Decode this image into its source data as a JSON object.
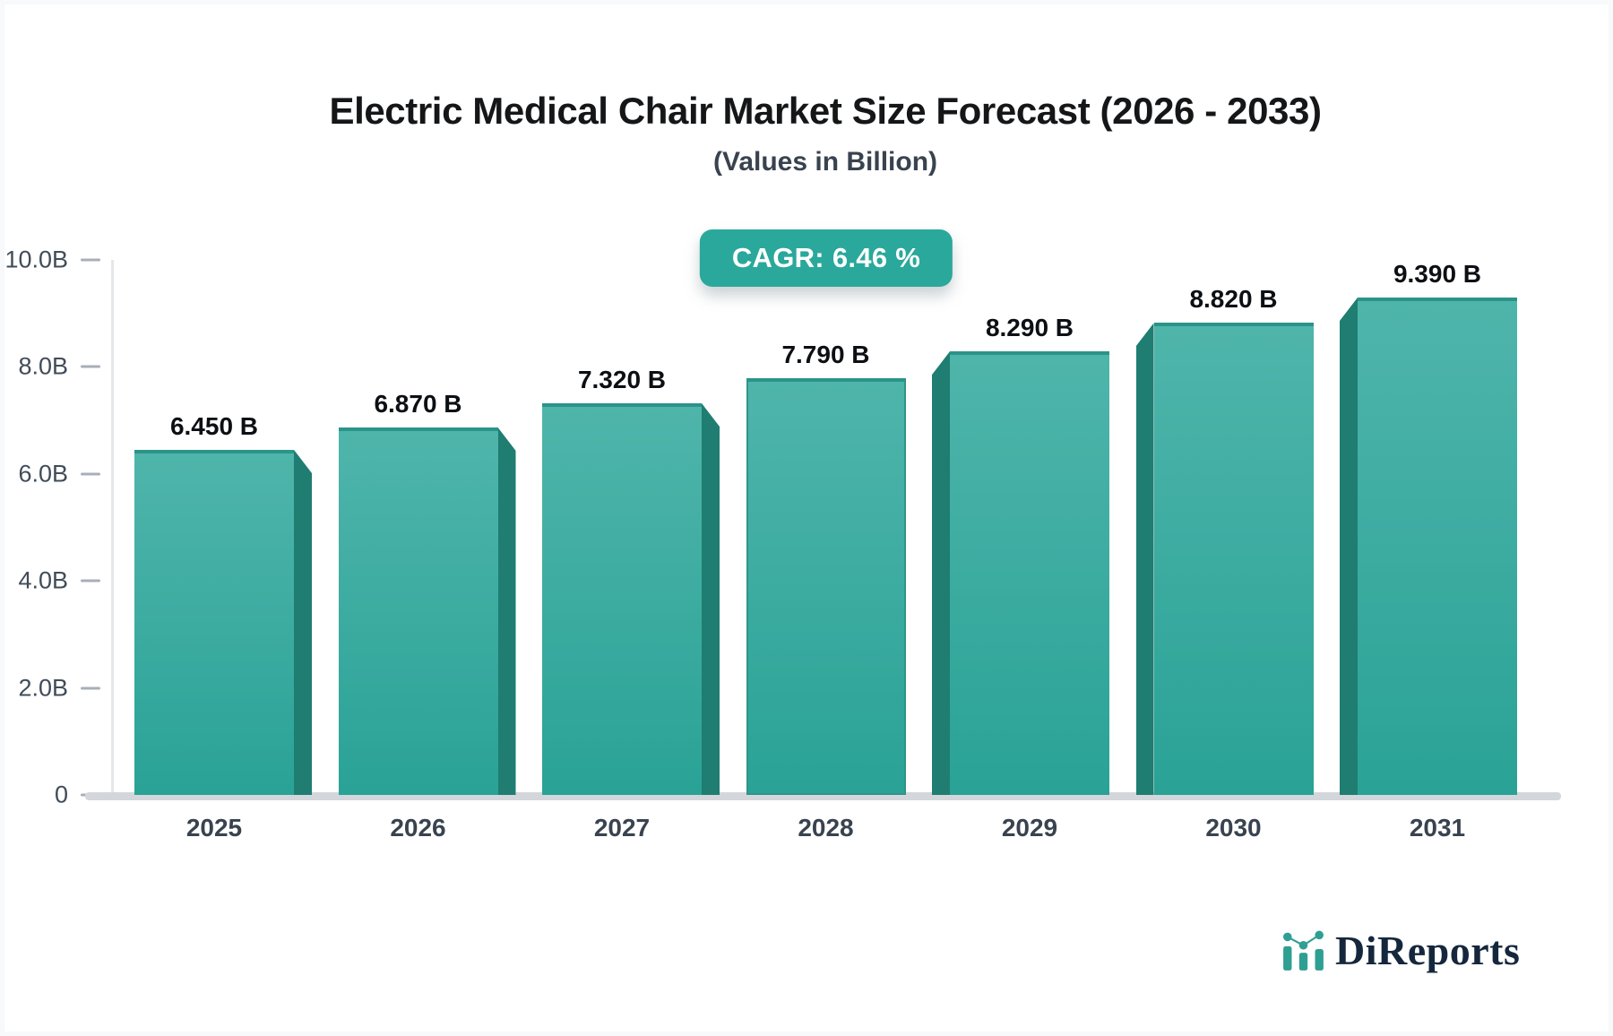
{
  "chart_data": {
    "type": "bar",
    "title": "Electric Medical Chair Market Size Forecast (2026 - 2033)",
    "subtitle": "(Values in Billion)",
    "cagr_label": "CAGR: 6.46 %",
    "x": [
      "2025",
      "2026",
      "2027",
      "2028",
      "2029",
      "2030",
      "2031"
    ],
    "values": [
      6.45,
      6.87,
      7.32,
      7.79,
      8.29,
      8.82,
      9.39
    ],
    "value_labels": [
      "6.450 B",
      "6.870 B",
      "7.320 B",
      "7.790 B",
      "8.290 B",
      "8.820 B",
      "9.390 B"
    ],
    "unit": "Billion",
    "ylabel": "",
    "xlabel": "",
    "y_tick_labels": [
      "10.0B",
      "8.0B",
      "6.0B",
      "4.0B",
      "2.0B",
      "0"
    ],
    "ylim": [
      0,
      10
    ],
    "grid": false,
    "legend": false,
    "colors": {
      "bar_face_top": "#4fb5ab",
      "bar_face_bottom": "#2aa296",
      "bar_side_shadow": "#1f7d71",
      "badge_background": "#2aa89b",
      "axis_line": "#e4e7ea",
      "baseline": "#d3d7dc"
    }
  },
  "footer": {
    "brand": "DiReports"
  }
}
